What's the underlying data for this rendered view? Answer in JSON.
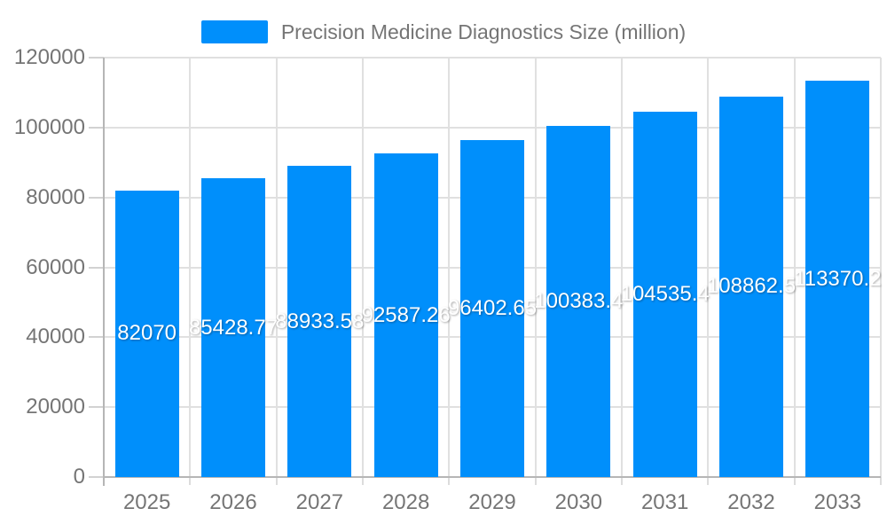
{
  "legend": {
    "label": "Precision Medicine Diagnostics Size (million)",
    "swatch_color": "#008FFB"
  },
  "chart_data": {
    "type": "bar",
    "title": "Precision Medicine Diagnostics Size (million)",
    "categories": [
      "2025",
      "2026",
      "2027",
      "2028",
      "2029",
      "2030",
      "2031",
      "2032",
      "2033"
    ],
    "values": [
      82070,
      85428.77,
      88933.58,
      92587.26,
      96402.65,
      100383.4,
      104535.4,
      108862.5,
      113370.2
    ],
    "value_labels": [
      "82070",
      "85428.77",
      "88933.58",
      "92587.26",
      "96402.65",
      "100383.4",
      "104535.4",
      "108862.5",
      "113370.2"
    ],
    "xlabel": "",
    "ylabel": "",
    "ylim": [
      0,
      120000
    ],
    "ytick_step": 20000,
    "ytick_labels": [
      "0",
      "20000",
      "40000",
      "60000",
      "80000",
      "100000",
      "120000"
    ],
    "grid": "on",
    "legend_position": "top",
    "colors": {
      "bar": "#008FFB",
      "data_label": "#ffffff",
      "axis_text": "#757575",
      "grid_line": "#e0e0e0",
      "axis_line": "#b6b6b6"
    }
  }
}
